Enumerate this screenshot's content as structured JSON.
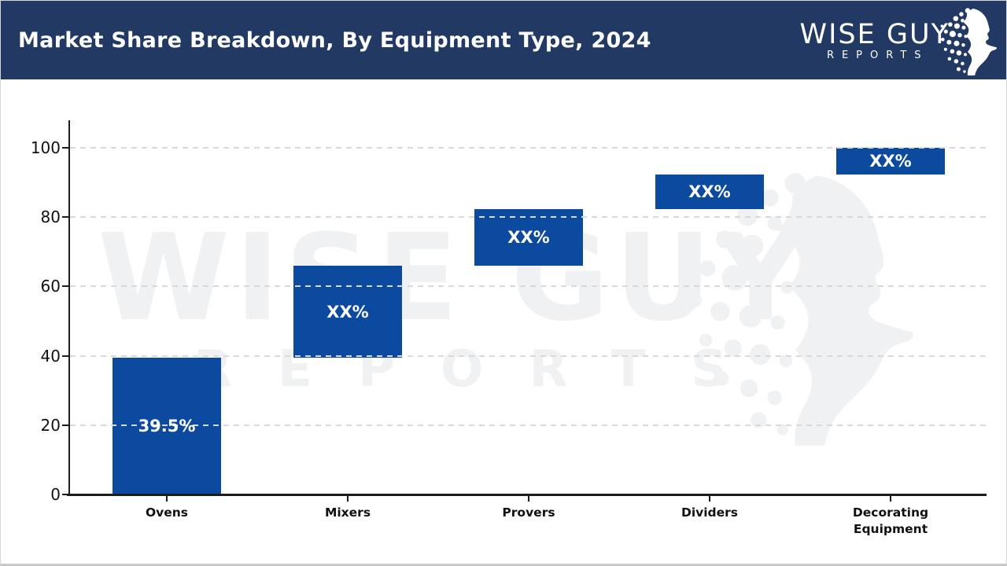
{
  "header": {
    "title": "Market Share Breakdown, By Equipment Type, 2024",
    "logo": {
      "line1": "WISE GUY",
      "line2": "REPORTS"
    }
  },
  "watermark": {
    "line1": "WISE GUY",
    "line2": "REPORTS"
  },
  "colors": {
    "header_bg": "#223963",
    "title_text": "#ffffff",
    "bar": "#0b4a9e",
    "bar_label": "#ffffff",
    "grid": "#d9d9d9",
    "axis": "#1c1c1c",
    "tick_text": "#111111",
    "watermark": "#f0f1f3"
  },
  "chart_data": {
    "type": "bar",
    "subtype": "waterfall",
    "title": "Market Share Breakdown, By Equipment Type, 2024",
    "categories": [
      "Ovens",
      "Mixers",
      "Provers",
      "Dividers",
      "Decorating\nEquipment"
    ],
    "segments": [
      {
        "category": "Ovens",
        "start": 0,
        "end": 39.5,
        "label": "39.5%"
      },
      {
        "category": "Mixers",
        "start": 39.5,
        "end": 65.9,
        "label": "XX%"
      },
      {
        "category": "Provers",
        "start": 65.9,
        "end": 82.2,
        "label": "XX%"
      },
      {
        "category": "Dividers",
        "start": 82.2,
        "end": 92.3,
        "label": "XX%"
      },
      {
        "category": "Decorating Equipment",
        "start": 92.3,
        "end": 100,
        "label": "XX%"
      }
    ],
    "yticks": [
      0,
      20,
      40,
      60,
      80,
      100
    ],
    "ylim": [
      0,
      108
    ],
    "xlabel": "",
    "ylabel": "",
    "grid": "horizontal-dashed",
    "legend": "none"
  }
}
